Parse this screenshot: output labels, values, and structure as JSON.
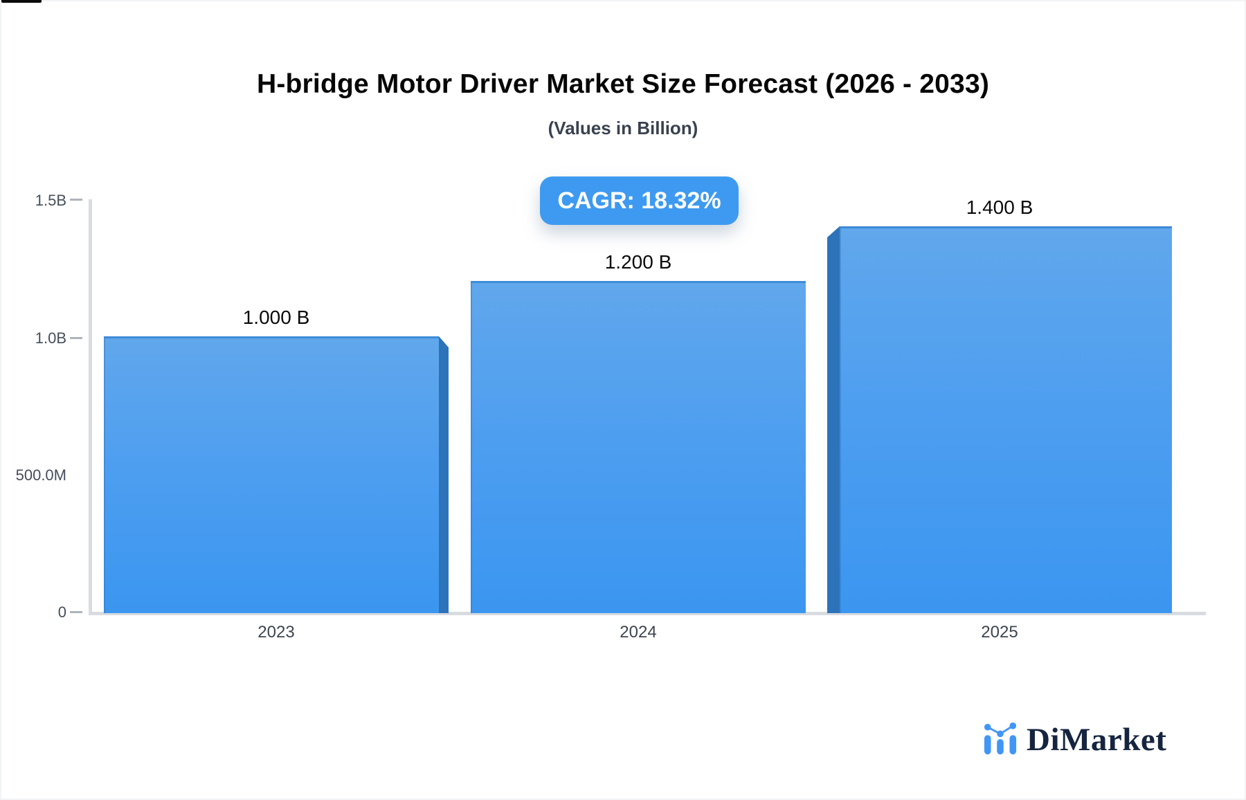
{
  "header": {
    "title": "H-bridge Motor Driver Market Size Forecast (2026 - 2033)",
    "subtitle": "(Values in Billion)"
  },
  "badge": {
    "label": "CAGR: 18.32%",
    "color": "#3e9af0"
  },
  "chart_data": {
    "type": "bar",
    "title": "H-bridge Motor Driver Market Size Forecast (2026 - 2033)",
    "subtitle": "(Values in Billion)",
    "categories": [
      "2023",
      "2024",
      "2025"
    ],
    "values": [
      1.0,
      1.2,
      1.4
    ],
    "value_labels": [
      "1.000 B",
      "1.200 B",
      "1.400 B"
    ],
    "unit": "Billion",
    "cagr_percent": "18.32%",
    "ylim": [
      0,
      1.5
    ],
    "ytick_labels": [
      "1.5B",
      "1.0B",
      "500.0M",
      "0"
    ],
    "grid": false,
    "legend": false,
    "bar_color_top": "#61a7ec",
    "bar_color_bottom": "#3b96f0",
    "bar_side_color": "#2d73ba",
    "axis_color": "#d8dbe0"
  },
  "footer": {
    "logo_text": "DiMarket",
    "logo_icon": "mini-bar-line-chart",
    "logo_icon_color": "#4196f5",
    "logo_text_color": "#16253f"
  }
}
